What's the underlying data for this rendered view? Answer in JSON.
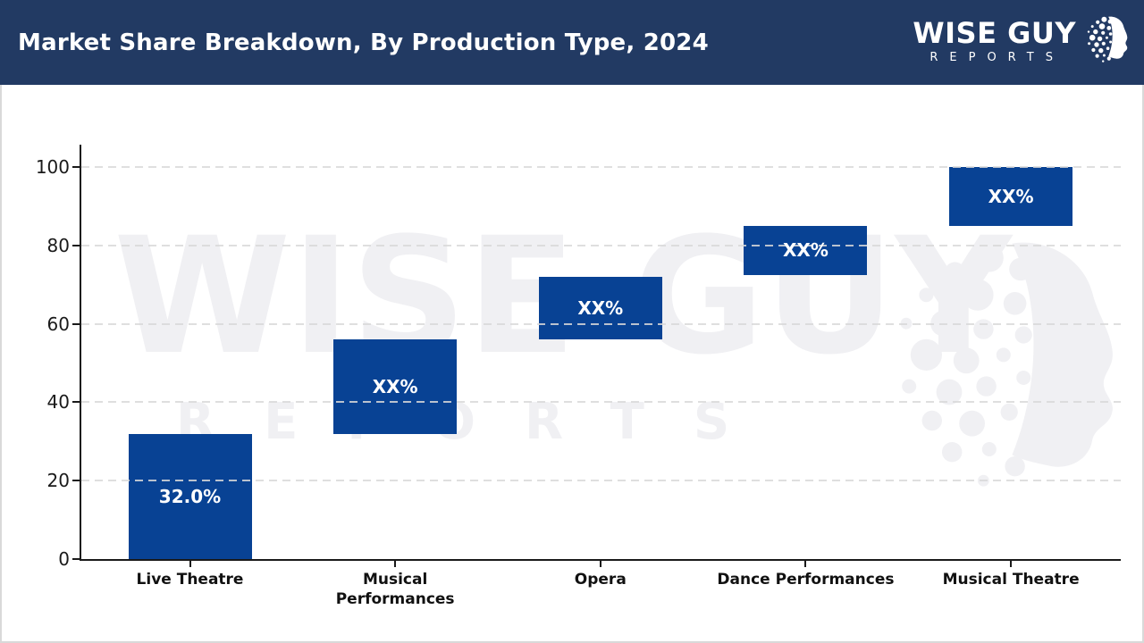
{
  "header": {
    "title": "Market Share Breakdown, By Production Type, 2024",
    "logo": {
      "primary": "WISE GUY",
      "secondary": "REPORTS"
    }
  },
  "watermark": {
    "primary": "WISE GUY",
    "secondary": "REPORTS"
  },
  "colors": {
    "header_bg": "#223a63",
    "bar_fill": "#084294",
    "bar_label_text": "#ffffff",
    "gridline_color": "#d9d9d9",
    "axis_color": "#1a1a1a",
    "tick_label_color": "#1a1a1a",
    "watermark_color": "#f0f0f3"
  },
  "chart_data": {
    "type": "bar",
    "subtype": "waterfall",
    "title": "Market Share Breakdown, By Production Type, 2024",
    "xlabel": "",
    "ylabel": "",
    "ylim": [
      0,
      100
    ],
    "yticks": [
      0,
      20,
      40,
      60,
      80,
      100
    ],
    "grid": "horizontal-dashed",
    "legend": "none",
    "categories": [
      "Live Theatre",
      "Musical\nPerformances",
      "Opera",
      "Dance Performances",
      "Musical Theatre"
    ],
    "segments": [
      {
        "start": 0,
        "end": 32,
        "label": "32.0%"
      },
      {
        "start": 32,
        "end": 56,
        "label": "XX%"
      },
      {
        "start": 56,
        "end": 72,
        "label": "XX%"
      },
      {
        "start": 72.5,
        "end": 85,
        "label": "XX%"
      },
      {
        "start": 85,
        "end": 100,
        "label": "XX%"
      }
    ]
  }
}
